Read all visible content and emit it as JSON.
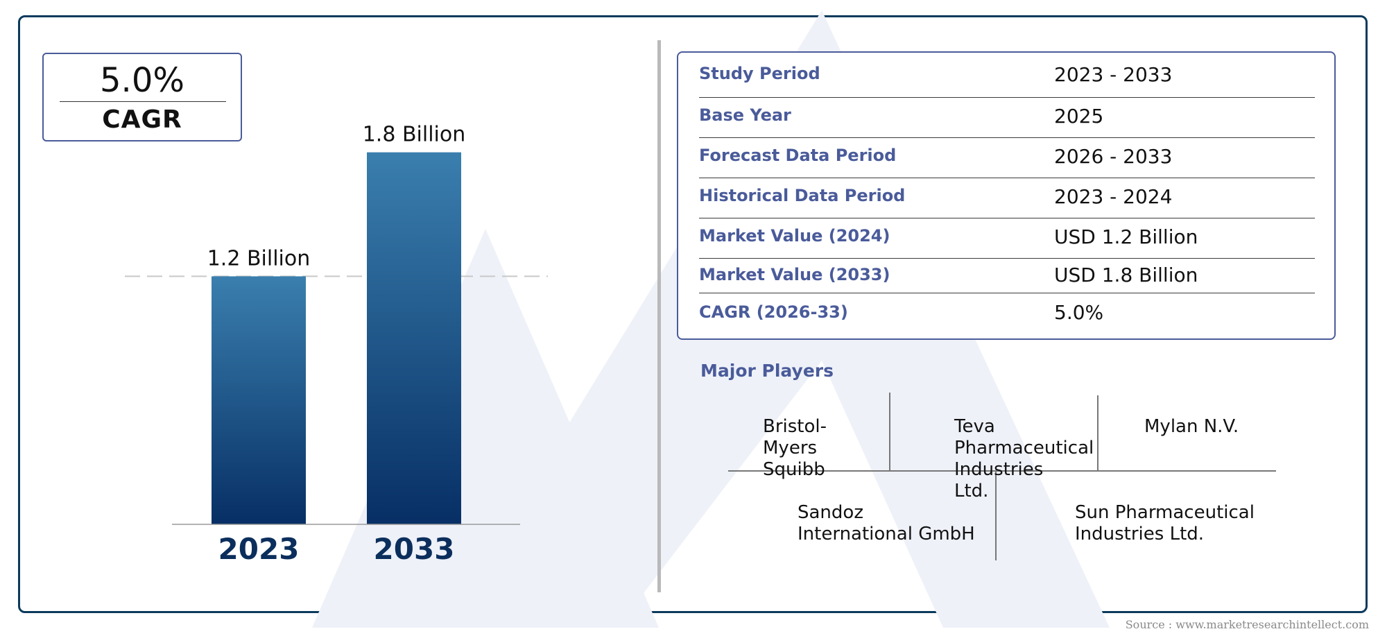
{
  "cagr_box": {
    "value": "5.0%",
    "label": "CAGR"
  },
  "chart_data": {
    "type": "bar",
    "categories": [
      "2023",
      "2033"
    ],
    "values": [
      1.2,
      1.8
    ],
    "value_labels": [
      "1.2 Billion",
      "1.8 Billion"
    ],
    "reference_line_value": 1.2,
    "ylim": [
      0,
      2.0
    ],
    "bar_color_top": "#3a7fae",
    "bar_color_bottom": "#072f65",
    "category_label_color": "#0b2e5c"
  },
  "info_table": [
    {
      "label": "Study Period",
      "value": "2023 - 2033"
    },
    {
      "label": "Base Year",
      "value": "2025"
    },
    {
      "label": "Forecast Data Period",
      "value": "2026 - 2033"
    },
    {
      "label": "Historical Data Period",
      "value": "2023 - 2024"
    },
    {
      "label": "Market Value (2024)",
      "value": "USD 1.2 Billion"
    },
    {
      "label": "Market Value (2033)",
      "value": "USD 1.8 Billion"
    },
    {
      "label": "CAGR (2026-33)",
      "value": "5.0%"
    }
  ],
  "major_players": {
    "title": "Major Players",
    "players": [
      "Bristol-Myers Squibb",
      "Teva Pharmaceutical Industries Ltd.",
      "Mylan N.V.",
      "Sandoz International GmbH",
      "Sun Pharmaceutical Industries Ltd."
    ]
  },
  "source": "Source : www.marketresearchintellect.com",
  "colors": {
    "frame": "#0b3a5c",
    "accent": "#4a5b9a"
  }
}
